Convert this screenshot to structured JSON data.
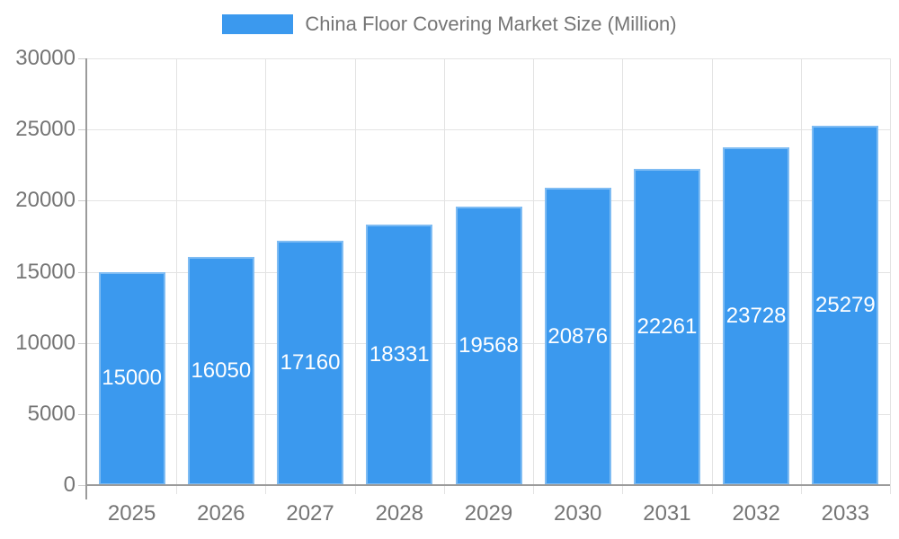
{
  "legend": {
    "label": "China Floor Covering Market Size (Million)"
  },
  "chart_data": {
    "type": "bar",
    "title": "China Floor Covering Market Size (Million)",
    "legend_entries": [
      "China Floor Covering Market Size (Million)"
    ],
    "legend_position": "top",
    "categories": [
      "2025",
      "2026",
      "2027",
      "2028",
      "2029",
      "2030",
      "2031",
      "2032",
      "2033"
    ],
    "values": [
      15000,
      16050,
      17160,
      18331,
      19568,
      20876,
      22261,
      23728,
      25279
    ],
    "yticks": [
      0,
      5000,
      10000,
      15000,
      20000,
      25000,
      30000
    ],
    "ylim": [
      0,
      30000
    ],
    "xlabel": "",
    "ylabel": "",
    "grid": true,
    "value_labels": "inside-center",
    "colors": {
      "bar_fill": "#3B99EE",
      "bar_border": "#7FBCF3",
      "value_label": "#FFFFFF",
      "axis_line": "#9B9B9B",
      "grid_line": "#E3E3E3",
      "tick_line": "#CDCDCD",
      "axis_text": "#757575",
      "background": "#FFFFFF"
    }
  }
}
